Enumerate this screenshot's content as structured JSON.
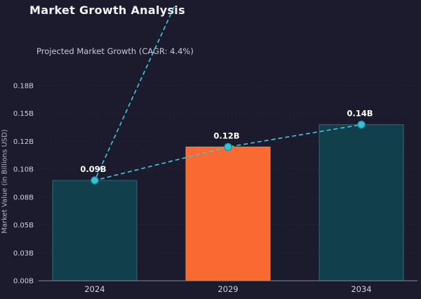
{
  "page": {
    "title": "Market Growth Analysis",
    "subtitle": "Projected Market Growth (CAGR: 4.4%)"
  },
  "chart_data": {
    "type": "bar",
    "title": "Market Growth Analysis",
    "subtitle": "Projected Market Growth (CAGR: 4.4%)",
    "categories": [
      "2024",
      "2029",
      "2034"
    ],
    "values": [
      0.09,
      0.12,
      0.14
    ],
    "value_labels": [
      "0.09B",
      "0.12B",
      "0.14B"
    ],
    "series": [
      {
        "name": "Market Value",
        "values": [
          0.09,
          0.12,
          0.14
        ]
      }
    ],
    "xlabel": "",
    "ylabel": "Market Value (in Billions USD)",
    "yticks": [
      0,
      0.025,
      0.05,
      0.075,
      0.1,
      0.125,
      0.15,
      0.175
    ],
    "ytick_labels": [
      "0.00B",
      "0.03B",
      "0.05B",
      "0.08B",
      "0.10B",
      "0.12B",
      "0.15B",
      "0.18B"
    ],
    "ylim": [
      0,
      0.19
    ],
    "grid": true,
    "legend": false,
    "colors": {
      "background": "#1b1b2d",
      "bar_fill": [
        "#113f4c",
        "#f96a33",
        "#113f4c"
      ],
      "bar_border": [
        "#2c6b7a",
        "#fb7b47",
        "#2c6b7a"
      ],
      "trend_line": "#3ecadd",
      "marker_fill": "#38c3d6",
      "marker_border": "#1f93a8",
      "grid_line": "#2b2b40",
      "axis_line": "#8a8a96",
      "tick_text": "#d2d2dc",
      "value_label_text": "#ffffff"
    }
  }
}
